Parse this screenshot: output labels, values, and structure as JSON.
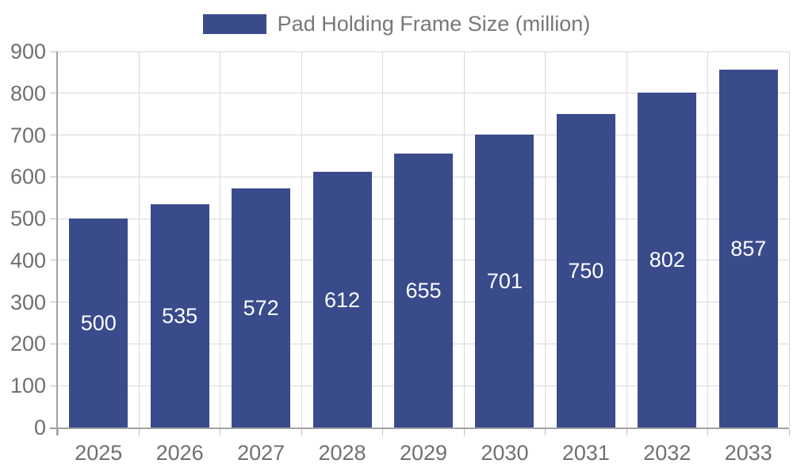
{
  "legend": {
    "label": "Pad Holding Frame Size (million)"
  },
  "chart_data": {
    "type": "bar",
    "title": "Pad Holding Frame Size (million)",
    "categories": [
      "2025",
      "2026",
      "2027",
      "2028",
      "2029",
      "2030",
      "2031",
      "2032",
      "2033"
    ],
    "values": [
      500,
      535,
      572,
      612,
      655,
      701,
      750,
      802,
      857
    ],
    "xlabel": "",
    "ylabel": "",
    "ylim": [
      0,
      900
    ],
    "ytick_interval": 100,
    "yticks": [
      0,
      100,
      200,
      300,
      400,
      500,
      600,
      700,
      800,
      900
    ],
    "grid": true,
    "legend_position": "top-center",
    "colors": {
      "bar": "#3A4B8C",
      "bar_label_text": "#FFFFFF",
      "axis_text": "#6E7073",
      "legend_text": "#75787C",
      "grid_line": "#D9D9D9",
      "axis_line": "#A2A2A2",
      "tick": "#BDBDBD",
      "background": "#FFFFFF"
    }
  }
}
